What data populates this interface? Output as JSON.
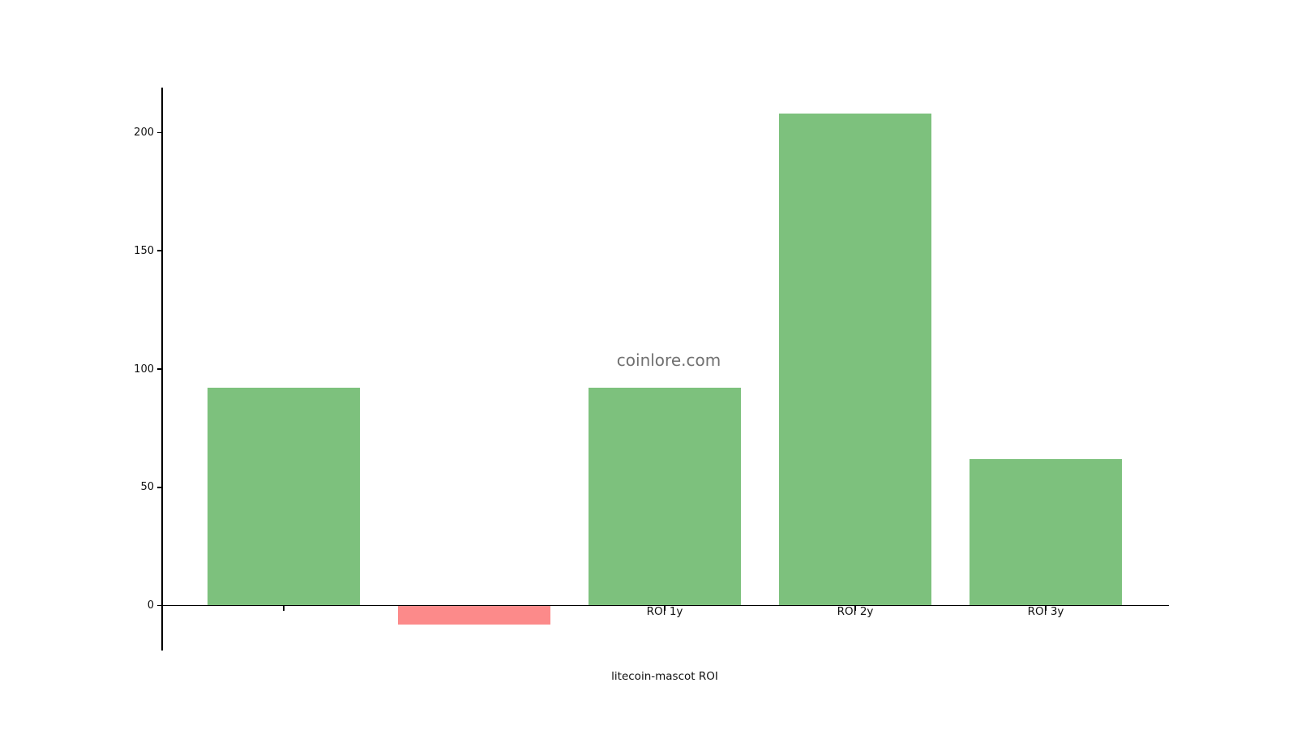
{
  "watermark": "coinlore.com",
  "chart_data": {
    "type": "bar",
    "title": "litecoin-mascot ROI",
    "xlabel": "",
    "ylabel": "",
    "categories": [
      "",
      "",
      "ROI 1y",
      "ROI 2y",
      "ROI 3y"
    ],
    "values": [
      92,
      -8,
      92,
      208,
      62
    ],
    "bar_colors": [
      "#7DC17D",
      "#FC8A8A",
      "#7DC17D",
      "#7DC17D",
      "#7DC17D"
    ],
    "positive_color": "#7DC17D",
    "negative_color": "#FC8A8A",
    "y_ticks": [
      0,
      50,
      100,
      150,
      200
    ],
    "ylim": [
      -18.8,
      218.8
    ],
    "grid": false,
    "legend": false
  }
}
